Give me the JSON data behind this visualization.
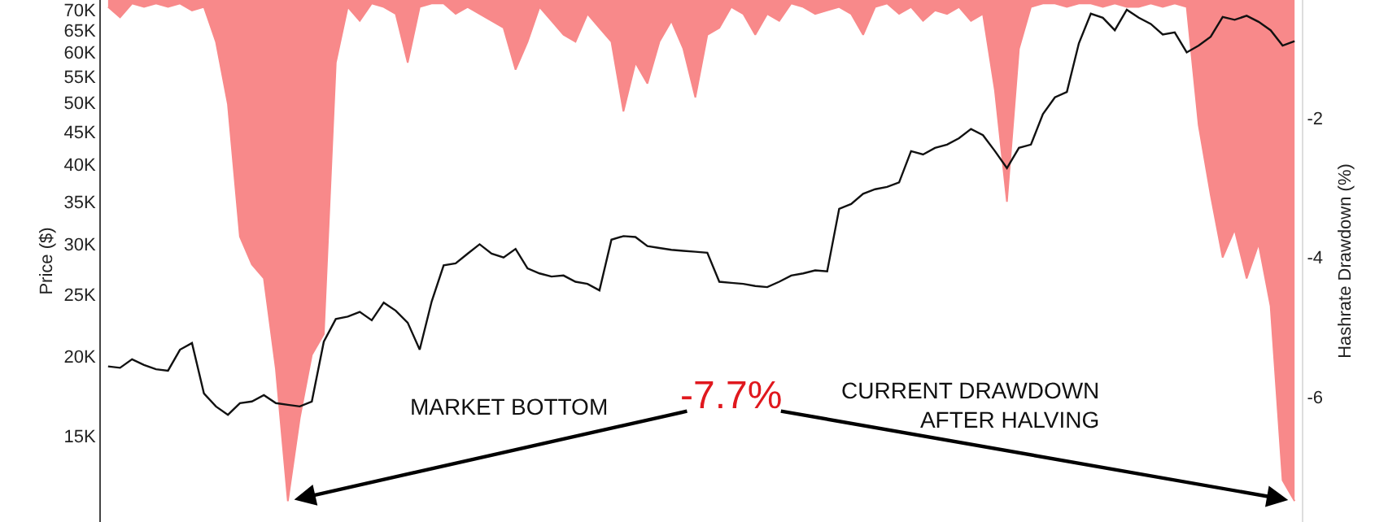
{
  "chart_data": {
    "type": "line",
    "ylabel": "Price ($)",
    "y2label": "Hashrate Drawdown (%)",
    "categories": [
      null,
      null,
      null,
      null,
      null,
      null,
      null,
      null,
      null,
      null,
      null,
      null,
      null,
      null,
      null,
      null,
      null,
      null,
      null,
      null,
      null,
      null,
      null,
      null,
      null,
      null,
      null,
      null,
      null,
      null,
      null,
      null,
      null,
      null,
      null,
      null,
      null,
      null,
      null,
      null,
      null,
      null,
      null,
      null,
      null,
      null,
      null,
      null,
      null,
      null,
      null,
      null,
      null,
      null,
      null,
      null,
      null,
      null,
      null,
      null,
      null,
      null,
      null,
      null,
      null,
      null,
      null,
      null,
      null,
      null,
      null,
      null,
      null,
      null,
      null,
      null,
      null,
      null,
      null,
      null,
      null,
      null,
      null,
      null,
      null,
      null,
      null,
      null,
      null,
      null,
      null,
      null,
      null,
      null,
      null,
      null,
      null,
      null,
      null,
      null
    ],
    "series": [
      {
        "type": "area",
        "axis": "y2",
        "color": "#f8898a",
        "values": [
          -0.4,
          -0.55,
          -0.35,
          -0.4,
          -0.35,
          -0.4,
          -0.35,
          -0.45,
          -0.4,
          -0.9,
          -1.8,
          -3.7,
          -4.1,
          -4.3,
          -5.6,
          -7.5,
          -6.3,
          -5.4,
          -5.1,
          -1.2,
          -0.4,
          -0.6,
          -0.35,
          -0.4,
          -0.5,
          -1.2,
          -0.4,
          -0.35,
          -0.35,
          -0.5,
          -0.4,
          -0.5,
          -0.6,
          -0.7,
          -1.3,
          -0.9,
          -0.4,
          -0.6,
          -0.8,
          -0.9,
          -0.5,
          -0.7,
          -0.9,
          -1.9,
          -1.2,
          -1.5,
          -0.9,
          -0.6,
          -1.0,
          -1.7,
          -0.8,
          -0.7,
          -0.4,
          -0.5,
          -0.8,
          -0.5,
          -0.6,
          -0.35,
          -0.4,
          -0.5,
          -0.45,
          -0.4,
          -0.5,
          -0.8,
          -0.4,
          -0.35,
          -0.5,
          -0.4,
          -0.6,
          -0.45,
          -0.5,
          -0.4,
          -0.6,
          -0.5,
          -1.6,
          -3.2,
          -1.0,
          -0.4,
          -0.35,
          -0.35,
          -0.4,
          -0.35,
          -0.35,
          -0.4,
          -0.35,
          -0.4,
          -0.4,
          -0.35,
          -0.4,
          -0.35,
          -0.4,
          -2.1,
          -3.1,
          -4.0,
          -3.6,
          -4.3,
          -3.8,
          -4.7,
          -7.2,
          -7.5
        ]
      },
      {
        "color": "#111111",
        "values": [
          19300,
          19200,
          19800,
          19400,
          19100,
          19000,
          20500,
          21000,
          17500,
          16700,
          16200,
          16900,
          17000,
          17400,
          16900,
          16800,
          16700,
          17000,
          21100,
          22900,
          23100,
          23500,
          22800,
          24300,
          23600,
          22600,
          20500,
          24400,
          27800,
          28000,
          29000,
          30000,
          29000,
          28600,
          29500,
          27500,
          27000,
          26700,
          26800,
          26200,
          26000,
          25400,
          30500,
          30900,
          30800,
          29800,
          29600,
          29400,
          29300,
          29200,
          29100,
          26200,
          26100,
          26000,
          25800,
          25700,
          26200,
          26800,
          27000,
          27300,
          27200,
          34100,
          34700,
          36000,
          36600,
          36900,
          37500,
          42000,
          41500,
          42500,
          43000,
          44000,
          45500,
          44500,
          42000,
          39500,
          42500,
          43000,
          48000,
          51000,
          52000,
          62000,
          69000,
          68000,
          65000,
          70000,
          68000,
          66500,
          64000,
          64500,
          60000,
          61500,
          63500,
          68200,
          67500,
          68500,
          67000,
          65000,
          61500,
          62500
        ]
      }
    ],
    "log": true,
    "ylim": [
      11000,
      72500
    ],
    "yticks": [
      {
        "value": 15000,
        "label": "15K"
      },
      {
        "value": 20000,
        "label": "20K"
      },
      {
        "value": 25000,
        "label": "25K"
      },
      {
        "value": 30000,
        "label": "30K"
      },
      {
        "value": 35000,
        "label": "35K"
      },
      {
        "value": 40000,
        "label": "40K"
      },
      {
        "value": 45000,
        "label": "45K"
      },
      {
        "value": 50000,
        "label": "50K"
      },
      {
        "value": 55000,
        "label": "55K"
      },
      {
        "value": 60000,
        "label": "60K"
      },
      {
        "value": 65000,
        "label": "65K"
      },
      {
        "value": 70000,
        "label": "70K"
      }
    ],
    "y2lim": [
      -7.8,
      -0.3
    ],
    "y2ticks": [
      -2,
      -4,
      -6
    ],
    "tick_labels": "y",
    "annotations": [
      "MARKET BOTTOM",
      "-7.7%",
      "CURRENT DRAWDOWN\nAFTER HALVING"
    ]
  }
}
